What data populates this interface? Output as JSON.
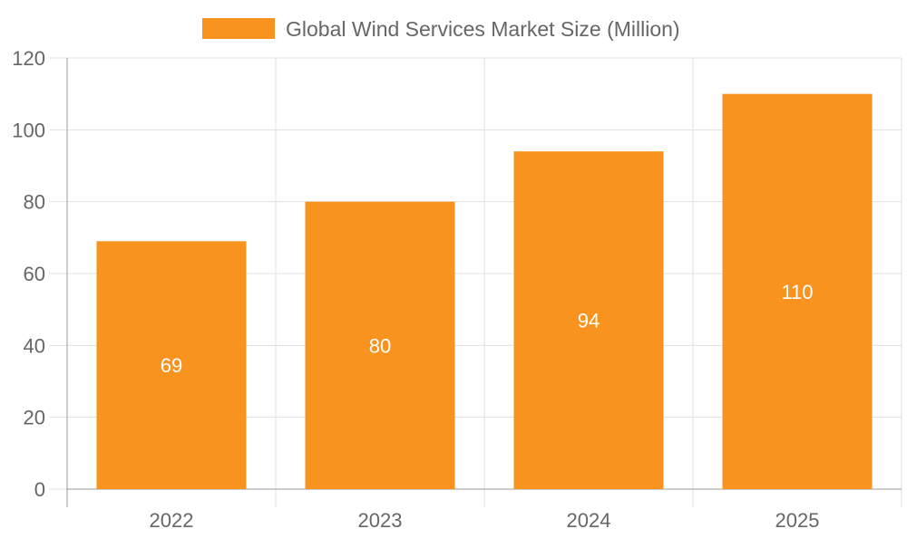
{
  "chart_data": {
    "type": "bar",
    "categories": [
      "2022",
      "2023",
      "2024",
      "2025"
    ],
    "series": [
      {
        "name": "Global Wind Services Market Size (Million)",
        "values": [
          69,
          80,
          94,
          110
        ],
        "color": "#f7931e"
      }
    ],
    "ylim": [
      0,
      120
    ],
    "yticks": [
      0,
      20,
      40,
      60,
      80,
      100,
      120
    ],
    "grid": true,
    "legend": "top",
    "data_labels": true
  }
}
